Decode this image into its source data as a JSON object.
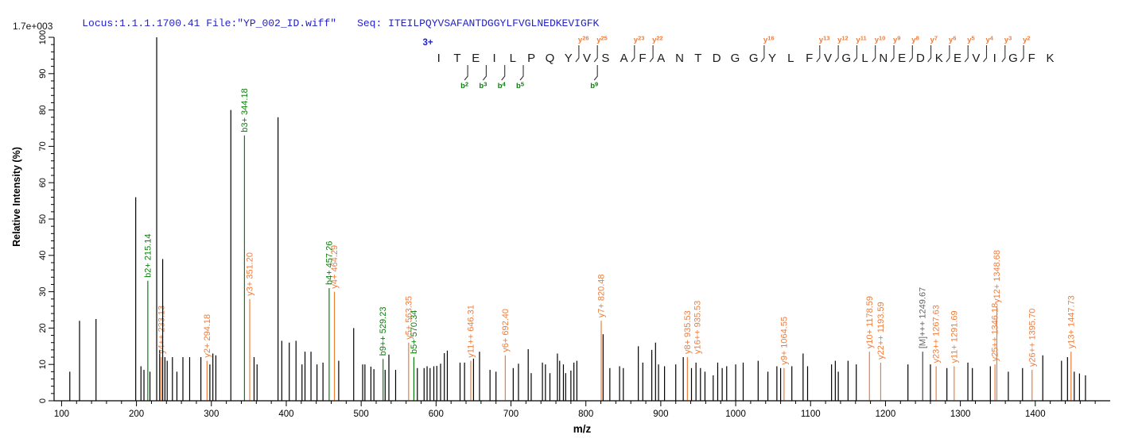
{
  "header": {
    "locus_file": "Locus:1.1.1.1700.41 File:\"YP_002_ID.wiff\"",
    "seq_label": "Seq:",
    "sequence": "ITEILPQYVSAFANTDGGYLFVGLNEDKEVIGFK",
    "scale_note": "1.7e+003"
  },
  "sequence_annotation": {
    "charge": "3+",
    "residues": [
      "I",
      "T",
      "E",
      "I",
      "L",
      "P",
      "Q",
      "Y",
      "V",
      "S",
      "A",
      "F",
      "A",
      "N",
      "T",
      "D",
      "G",
      "G",
      "Y",
      "L",
      "F",
      "V",
      "G",
      "L",
      "N",
      "E",
      "D",
      "K",
      "E",
      "V",
      "I",
      "G",
      "F",
      "K"
    ],
    "y_ions": [
      {
        "before_index": 8,
        "label": "y26"
      },
      {
        "before_index": 9,
        "label": "y25"
      },
      {
        "before_index": 11,
        "label": "y23"
      },
      {
        "before_index": 12,
        "label": "y22"
      },
      {
        "before_index": 18,
        "label": "y16"
      },
      {
        "before_index": 21,
        "label": "y13"
      },
      {
        "before_index": 22,
        "label": "y12"
      },
      {
        "before_index": 23,
        "label": "y11"
      },
      {
        "before_index": 24,
        "label": "y10"
      },
      {
        "before_index": 25,
        "label": "y9"
      },
      {
        "before_index": 26,
        "label": "y8"
      },
      {
        "before_index": 27,
        "label": "y7"
      },
      {
        "before_index": 28,
        "label": "y6"
      },
      {
        "before_index": 29,
        "label": "y5"
      },
      {
        "before_index": 30,
        "label": "y4"
      },
      {
        "before_index": 31,
        "label": "y3"
      },
      {
        "before_index": 32,
        "label": "y2"
      }
    ],
    "b_ions": [
      {
        "before_index": 2,
        "label": "b2"
      },
      {
        "before_index": 3,
        "label": "b3"
      },
      {
        "before_index": 4,
        "label": "b4"
      },
      {
        "before_index": 5,
        "label": "b5"
      },
      {
        "before_index": 9,
        "label": "b9"
      }
    ]
  },
  "colors": {
    "peak_default": "#000000",
    "b_ion": "#0d7d0d",
    "y_ion": "#ee7d3b",
    "precursor_line": "#444444",
    "precursor_label": "#666666",
    "header_blue": "#2222cc",
    "axis": "#000000",
    "residue": "#1a1a1a",
    "marker": "#333333"
  },
  "chart_data": {
    "type": "bar",
    "subtype": "mass-spectrum-stick-plot",
    "title": "",
    "xlabel": "m/z",
    "ylabel": "Relative  Intensity (%)",
    "xlim": [
      90,
      1500
    ],
    "ylim": [
      0,
      100
    ],
    "x_major_tick_step": 100,
    "x_minor_tick_step": 20,
    "x_tick_labels": [
      "100",
      "200",
      "300",
      "400",
      "500",
      "600",
      "700",
      "800",
      "900",
      "1000",
      "1100",
      "1200",
      "1300",
      "1400"
    ],
    "y_major_tick_step": 10,
    "y_minor_tick_step": 2,
    "y_tick_labels": [
      "0",
      "10",
      "20",
      "30",
      "40",
      "50",
      "60",
      "70",
      "80",
      "90",
      "100"
    ],
    "grid": false,
    "legend": "none",
    "base_peak_absolute_intensity": "1.7e+003",
    "peaks_format": [
      "mz",
      "relative_intensity_percent",
      "type(p=plain,b=b-ion,y=y-ion,M=precursor)",
      "label",
      "label2"
    ],
    "peaks": [
      [
        111,
        8,
        "p"
      ],
      [
        124,
        22,
        "p"
      ],
      [
        146,
        22.5,
        "p"
      ],
      [
        199,
        56,
        "p"
      ],
      [
        206,
        9.5,
        "p"
      ],
      [
        210,
        8.5,
        "p"
      ],
      [
        215.14,
        33,
        "b",
        "b2+ 215.14"
      ],
      [
        218,
        8,
        "p"
      ],
      [
        227,
        100,
        "p"
      ],
      [
        231,
        14,
        "p"
      ],
      [
        233.13,
        12,
        "y",
        "y4++ 233.13"
      ],
      [
        235,
        39,
        "p"
      ],
      [
        238,
        12,
        "p"
      ],
      [
        241,
        11,
        "p"
      ],
      [
        248,
        12,
        "p"
      ],
      [
        254,
        8,
        "p"
      ],
      [
        262,
        12,
        "p"
      ],
      [
        271,
        12,
        "p"
      ],
      [
        286,
        12,
        "p"
      ],
      [
        294.18,
        11,
        "y",
        "y2+ 294.18"
      ],
      [
        298,
        10,
        "p"
      ],
      [
        302,
        13,
        "p"
      ],
      [
        306,
        12.5,
        "p"
      ],
      [
        326,
        80,
        "p"
      ],
      [
        344.18,
        73,
        "b",
        "b3+ 344.18"
      ],
      [
        351.2,
        28,
        "y",
        "y3+ 351.20"
      ],
      [
        357,
        12,
        "p"
      ],
      [
        361,
        10,
        "p"
      ],
      [
        389,
        78,
        "p"
      ],
      [
        394,
        16.5,
        "p"
      ],
      [
        404,
        16,
        "p"
      ],
      [
        413,
        16.5,
        "p"
      ],
      [
        421,
        10,
        "p"
      ],
      [
        425,
        13.5,
        "p"
      ],
      [
        433,
        13.5,
        "p"
      ],
      [
        441,
        10,
        "p"
      ],
      [
        449,
        10.5,
        "p"
      ],
      [
        457.26,
        31,
        "b",
        "b4+ 457.26"
      ],
      [
        464.29,
        30,
        "y",
        "y4+ 464.29"
      ],
      [
        470,
        11,
        "p"
      ],
      [
        490,
        20,
        "p"
      ],
      [
        502,
        10,
        "p"
      ],
      [
        505,
        10,
        "p"
      ],
      [
        513,
        9.4,
        "p"
      ],
      [
        517,
        8.7,
        "p"
      ],
      [
        529.23,
        11.5,
        "b",
        "b9++ 529.23"
      ],
      [
        532,
        8.5,
        "p"
      ],
      [
        537,
        12.7,
        "p"
      ],
      [
        546,
        8.5,
        "p"
      ],
      [
        563.35,
        16,
        "y",
        "y5+ 563.35"
      ],
      [
        570.34,
        12,
        "b",
        "b5+ 570.34"
      ],
      [
        575,
        9,
        "p"
      ],
      [
        584,
        9,
        "p"
      ],
      [
        588,
        9.5,
        "p"
      ],
      [
        592,
        9,
        "p"
      ],
      [
        597,
        9.5,
        "p"
      ],
      [
        601,
        9.6,
        "p"
      ],
      [
        606,
        10.2,
        "p"
      ],
      [
        611,
        13.1,
        "p"
      ],
      [
        615,
        13.8,
        "p"
      ],
      [
        632,
        10.5,
        "p"
      ],
      [
        638,
        10.5,
        "p"
      ],
      [
        646.31,
        11,
        "y",
        "y11++ 646.31"
      ],
      [
        650,
        11.6,
        "p"
      ],
      [
        658,
        13.5,
        "p"
      ],
      [
        672,
        8.5,
        "p"
      ],
      [
        680,
        8,
        "p"
      ],
      [
        692.4,
        12.5,
        "y",
        "y6+ 692.40"
      ],
      [
        703,
        9,
        "p"
      ],
      [
        710,
        10.2,
        "p"
      ],
      [
        723,
        14.2,
        "p"
      ],
      [
        727,
        7.6,
        "p"
      ],
      [
        742,
        10.5,
        "p"
      ],
      [
        746,
        10,
        "p"
      ],
      [
        752,
        7.6,
        "p"
      ],
      [
        762,
        13,
        "p"
      ],
      [
        765,
        11,
        "p"
      ],
      [
        770,
        10,
        "p"
      ],
      [
        773,
        7.6,
        "p"
      ],
      [
        780,
        8.3,
        "p"
      ],
      [
        784,
        10.5,
        "p"
      ],
      [
        788,
        11,
        "p"
      ],
      [
        820.48,
        22,
        "y",
        "y7+ 820.48"
      ],
      [
        823,
        18.3,
        "p"
      ],
      [
        832,
        9,
        "p"
      ],
      [
        845,
        9.5,
        "p"
      ],
      [
        850,
        9,
        "p"
      ],
      [
        870,
        15,
        "p"
      ],
      [
        876,
        10.5,
        "p"
      ],
      [
        888,
        14,
        "p"
      ],
      [
        893,
        16,
        "p"
      ],
      [
        897,
        10,
        "p"
      ],
      [
        905,
        9.5,
        "p"
      ],
      [
        920,
        10,
        "p"
      ],
      [
        930,
        12,
        "p"
      ],
      [
        935.53,
        12,
        "y",
        "y8+ 935.53",
        "y16++ 935.53"
      ],
      [
        941,
        9,
        "p"
      ],
      [
        947,
        10.5,
        "p"
      ],
      [
        953,
        9,
        "p"
      ],
      [
        959,
        8,
        "p"
      ],
      [
        970,
        7,
        "p"
      ],
      [
        976,
        10.5,
        "p"
      ],
      [
        982,
        9,
        "p"
      ],
      [
        988,
        9.5,
        "p"
      ],
      [
        1000,
        10,
        "p"
      ],
      [
        1010,
        10.5,
        "p"
      ],
      [
        1030,
        11,
        "p"
      ],
      [
        1043,
        8,
        "p"
      ],
      [
        1055,
        9.5,
        "p"
      ],
      [
        1060,
        9,
        "p"
      ],
      [
        1064.55,
        9,
        "y",
        "y9+ 1064.55"
      ],
      [
        1075,
        9.5,
        "p"
      ],
      [
        1090,
        13,
        "p"
      ],
      [
        1096,
        9.5,
        "p"
      ],
      [
        1128,
        10,
        "p"
      ],
      [
        1133,
        11,
        "p"
      ],
      [
        1137,
        8,
        "p"
      ],
      [
        1150,
        11,
        "p"
      ],
      [
        1161,
        10,
        "p"
      ],
      [
        1178.59,
        13.5,
        "y",
        "y10+ 1178.59"
      ],
      [
        1193.59,
        10.5,
        "y",
        "y22++ 1193.59"
      ],
      [
        1230,
        10,
        "p"
      ],
      [
        1249.67,
        13.5,
        "M",
        "[M]+++ 1249.67"
      ],
      [
        1260,
        10,
        "p"
      ],
      [
        1267.63,
        9.5,
        "y",
        "y23++ 1267.63"
      ],
      [
        1282,
        9,
        "p"
      ],
      [
        1291.69,
        9.5,
        "y",
        "y11+ 1291.69"
      ],
      [
        1310,
        10.5,
        "p"
      ],
      [
        1316,
        9,
        "p"
      ],
      [
        1340,
        9.5,
        "p"
      ],
      [
        1346.18,
        10,
        "y",
        "y25++ 1346.18"
      ],
      [
        1348.68,
        26,
        "y",
        "y12+ 1348.68"
      ],
      [
        1364,
        8,
        "p"
      ],
      [
        1383,
        9,
        "p"
      ],
      [
        1395.7,
        8.5,
        "y",
        "y26++ 1395.70"
      ],
      [
        1410,
        12.5,
        "p"
      ],
      [
        1435,
        11,
        "p"
      ],
      [
        1447.73,
        13.5,
        "y",
        "y13+ 1447.73"
      ],
      [
        1443,
        12,
        "p"
      ],
      [
        1452,
        8,
        "p"
      ],
      [
        1459,
        7.5,
        "p"
      ],
      [
        1467,
        7,
        "p"
      ]
    ]
  }
}
